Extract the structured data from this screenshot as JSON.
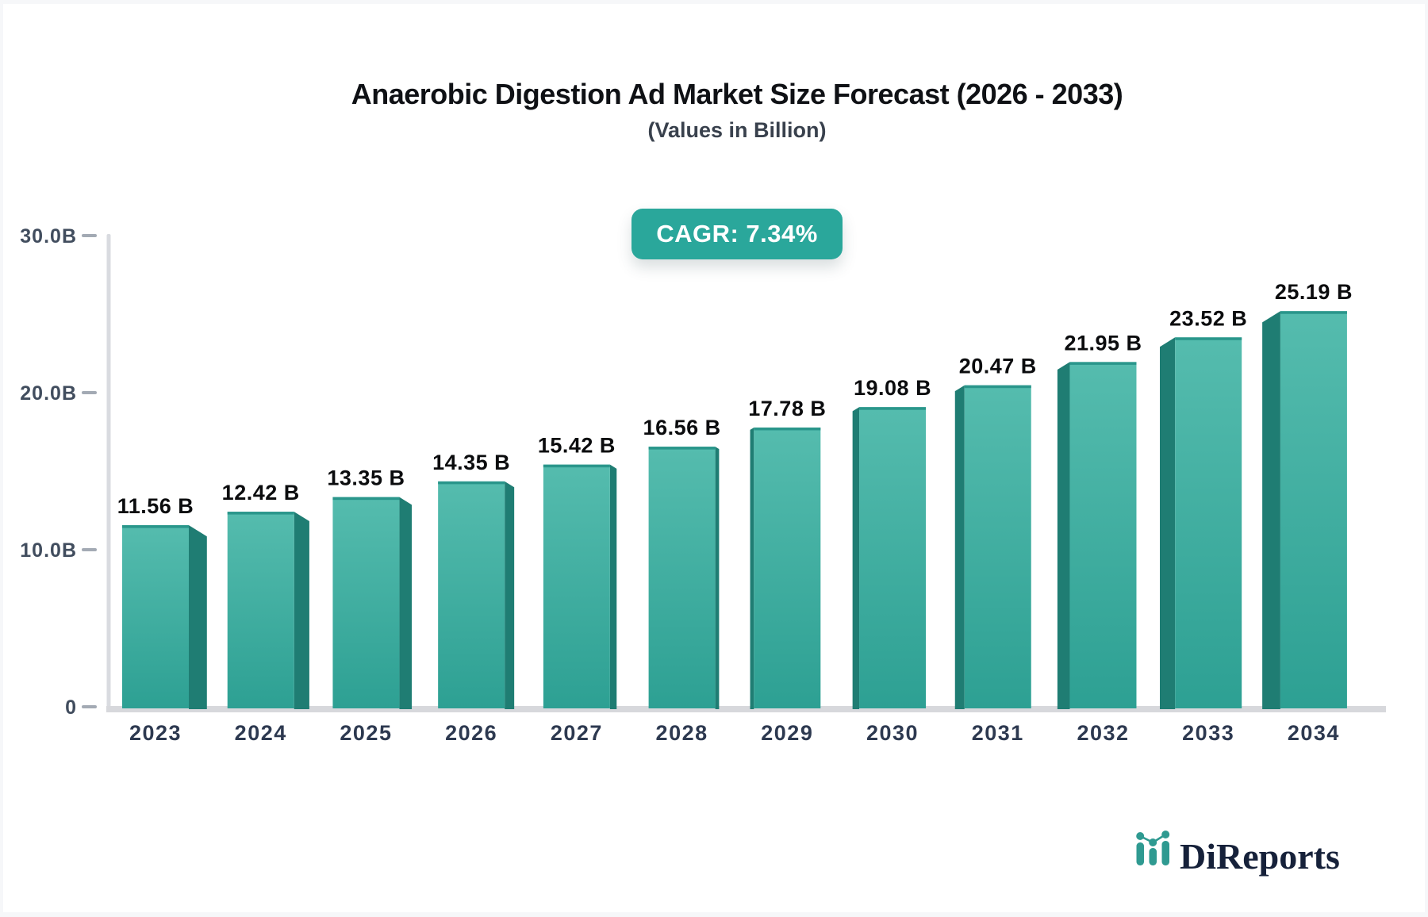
{
  "header": {
    "title": "Anaerobic Digestion Ad Market Size Forecast (2026 - 2033)",
    "subtitle": "(Values in Billion)",
    "cagr_label": "CAGR: 7.34%"
  },
  "branding": {
    "logo_text": "DiReports",
    "logo_icon": "mini-bar-chart-icon"
  },
  "colors": {
    "accent_teal": "#2aa79b",
    "bar_face_top": "#55bcae",
    "bar_face_bottom": "#2da093",
    "bar_side": "#1f7d73",
    "bar_top_edge": "#2a968b",
    "axis_line": "#d9dbe0",
    "baseline": "#d7d8dc",
    "tick_dash": "#a3aab4",
    "tick_label": "#414d5e",
    "year_label": "#2d3950",
    "value_label": "#0b0c0e",
    "logo_navy": "#16213a",
    "logo_teal": "#2f9a91"
  },
  "chart_data": {
    "type": "bar",
    "title": "Anaerobic Digestion Ad Market Size Forecast (2026 - 2033)",
    "subtitle": "(Values in Billion)",
    "unit": "Billion",
    "cagr_percent": 7.34,
    "categories": [
      "2023",
      "2024",
      "2025",
      "2026",
      "2027",
      "2028",
      "2029",
      "2030",
      "2031",
      "2032",
      "2033",
      "2034"
    ],
    "values": [
      11.56,
      12.42,
      13.35,
      14.35,
      15.42,
      16.56,
      17.78,
      19.08,
      20.47,
      21.95,
      23.52,
      25.19
    ],
    "value_labels": [
      "11.56 B",
      "12.42 B",
      "13.35 B",
      "14.35 B",
      "15.42 B",
      "16.56 B",
      "17.78 B",
      "19.08 B",
      "20.47 B",
      "21.95 B",
      "23.52 B",
      "25.19 B"
    ],
    "y_ticks": [
      {
        "value": 0,
        "label": "0"
      },
      {
        "value": 10,
        "label": "10.0B"
      },
      {
        "value": 20,
        "label": "20.0B"
      },
      {
        "value": 30,
        "label": "30.0B"
      }
    ],
    "ylim": [
      0,
      30
    ],
    "xlabel": "",
    "ylabel": "",
    "grid": false,
    "legend": "none",
    "bar_style": "3d-perspective-teal"
  }
}
